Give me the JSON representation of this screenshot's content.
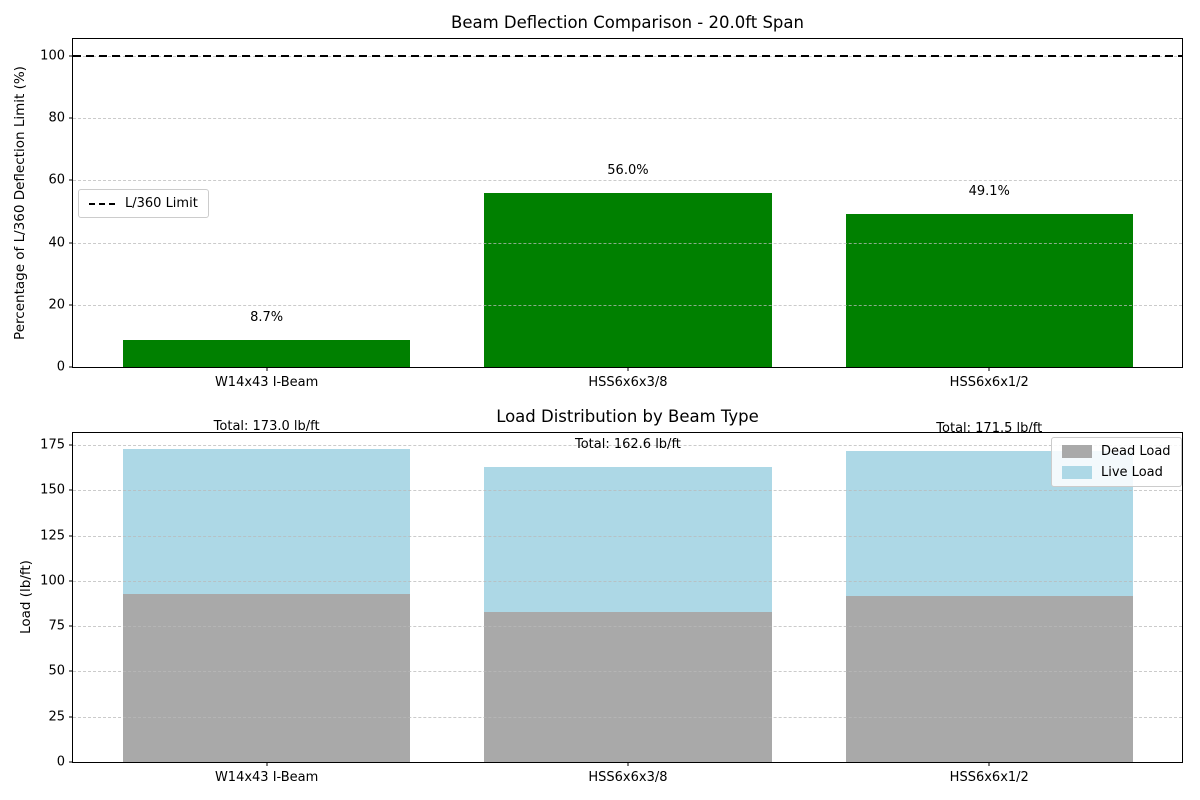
{
  "figure": {
    "background": "#ffffff"
  },
  "chart_data": [
    {
      "type": "bar",
      "title": "Beam Deflection Comparison - 20.0ft Span",
      "ylabel": "Percentage of L/360 Deflection Limit (%)",
      "xlabel": "",
      "categories": [
        "W14x43 I-Beam",
        "HSS6x6x3/8",
        "HSS6x6x1/2"
      ],
      "values": [
        8.7,
        56.0,
        49.1
      ],
      "bar_labels": [
        "8.7%",
        "56.0%",
        "49.1%"
      ],
      "bar_color": "#008000",
      "yticks": [
        0,
        20,
        40,
        60,
        80,
        100
      ],
      "ylim": [
        0,
        105.4
      ],
      "grid": "y-dashed",
      "legend_position": "center-left",
      "ref_line": {
        "value": 100,
        "label": "L/360 Limit",
        "color": "#000000",
        "style": "dashed"
      },
      "legend": {
        "entries": [
          {
            "label": "L/360 Limit",
            "swatch": "dashed-line",
            "color": "#000000"
          }
        ]
      }
    },
    {
      "type": "stacked-bar",
      "title": "Load Distribution by Beam Type",
      "ylabel": "Load (lb/ft)",
      "xlabel": "",
      "categories": [
        "W14x43 I-Beam",
        "HSS6x6x3/8",
        "HSS6x6x1/2"
      ],
      "series": [
        {
          "name": "Dead Load",
          "color": "#a9a9a9",
          "values": [
            93.0,
            82.6,
            91.5
          ]
        },
        {
          "name": "Live Load",
          "color": "#add8e6",
          "values": [
            80.0,
            80.0,
            80.0
          ]
        }
      ],
      "totals": [
        173.0,
        162.6,
        171.5
      ],
      "total_labels": [
        "Total: 173.0 lb/ft",
        "Total: 162.6 lb/ft",
        "Total: 171.5 lb/ft"
      ],
      "yticks": [
        0,
        25,
        50,
        75,
        100,
        125,
        150,
        175
      ],
      "ylim": [
        0,
        181.6
      ],
      "grid": "y-dashed",
      "legend_position": "top-right",
      "legend": {
        "entries": [
          {
            "label": "Dead Load",
            "color": "#a9a9a9"
          },
          {
            "label": "Live Load",
            "color": "#add8e6"
          }
        ]
      }
    }
  ]
}
